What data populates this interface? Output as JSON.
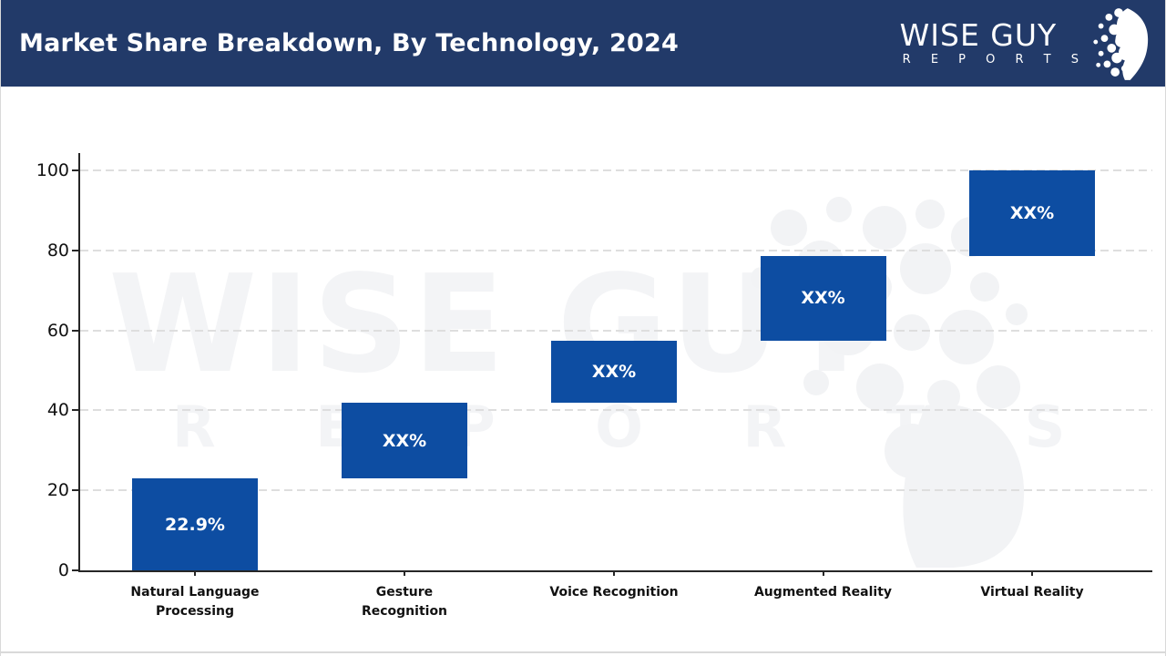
{
  "header": {
    "title": "Market Share Breakdown, By Technology, 2024",
    "bg_color": "#223a69",
    "logo": {
      "line1": "WISE GUY",
      "line2": "R E P O R T S"
    }
  },
  "watermark": {
    "line1": "WISE GUY",
    "line2": "R E P O R T S"
  },
  "chart_data": {
    "type": "bar",
    "subtype": "waterfall",
    "title": "Market Share Breakdown, By Technology, 2024",
    "xlabel": "",
    "ylabel": "",
    "categories": [
      "Natural Language Processing",
      "Gesture Recognition",
      "Voice Recognition",
      "Augmented Reality",
      "Virtual Reality"
    ],
    "category_lines": [
      [
        "Natural Language",
        "Processing"
      ],
      [
        "Gesture",
        "Recognition"
      ],
      [
        "Voice Recognition"
      ],
      [
        "Augmented Reality"
      ],
      [
        "Virtual Reality"
      ]
    ],
    "segments": [
      {
        "label": "22.9%",
        "start": 0,
        "end": 22.9
      },
      {
        "label": "XX%",
        "start": 22.9,
        "end": 42
      },
      {
        "label": "XX%",
        "start": 42,
        "end": 57.5
      },
      {
        "label": "XX%",
        "start": 57.5,
        "end": 78.5
      },
      {
        "label": "XX%",
        "start": 78.5,
        "end": 100
      }
    ],
    "yticks": [
      0,
      20,
      40,
      60,
      80,
      100
    ],
    "ylim": [
      0,
      105
    ],
    "grid": "horizontal-dashed",
    "legend": "none",
    "bar_color": "#0d4da2",
    "bar_label_color": "#ffffff",
    "axis_color": "#262626",
    "grid_color": "#dedede"
  }
}
